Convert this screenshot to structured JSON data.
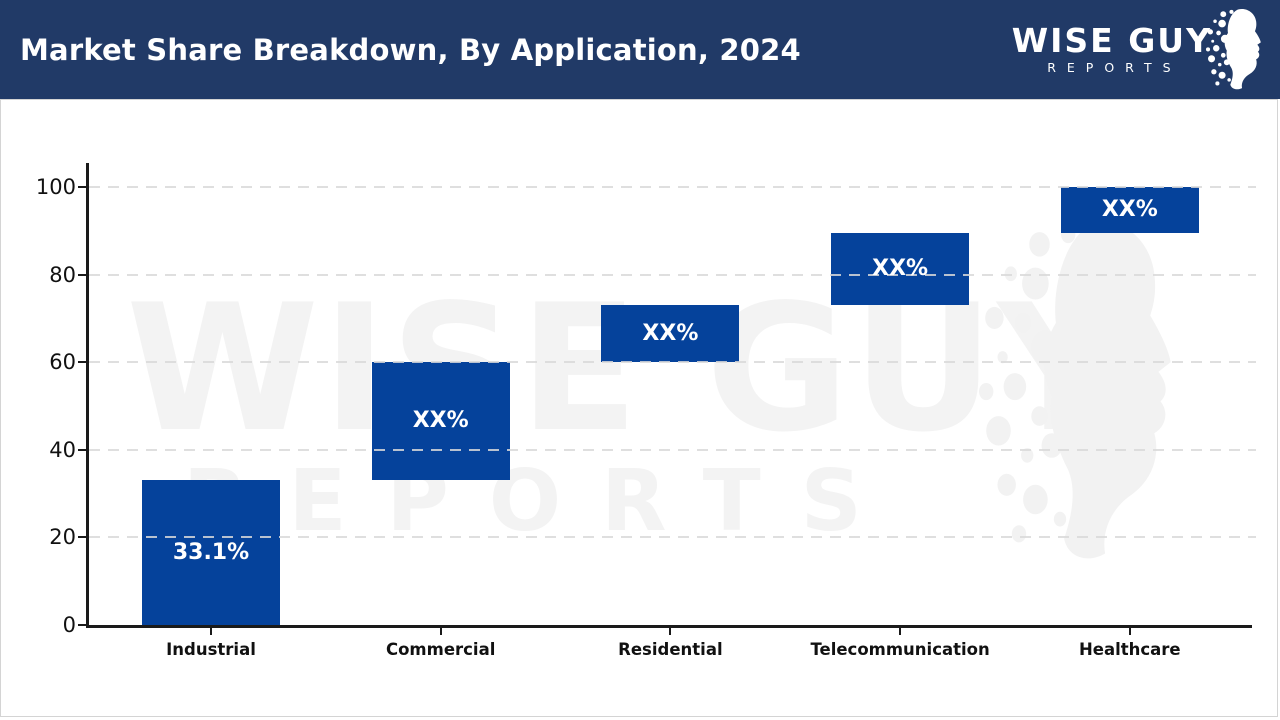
{
  "header": {
    "title": "Market Share Breakdown, By Application, 2024",
    "logo": {
      "wordmark": "WISE GUY",
      "tagline": "REPORTS"
    }
  },
  "watermark": {
    "wordmark": "WISE GUY",
    "tagline": "REPORTS"
  },
  "colors": {
    "header_bg": "#213a67",
    "title_text": "#ffffff",
    "bar": "#05429b",
    "bar_label": "#ffffff",
    "grid": "#d9d9d9",
    "axis": "#1a1a1a",
    "tick_text": "#111111",
    "watermark": "#f3f3f3"
  },
  "chart_data": {
    "type": "bar",
    "subtype": "waterfall",
    "title": "Market Share Breakdown, By Application, 2024",
    "categories": [
      "Industrial",
      "Commercial",
      "Residential",
      "Telecommunication",
      "Healthcare"
    ],
    "bars": [
      {
        "category": "Industrial",
        "label": "33.1%",
        "start": 0,
        "end": 33.1,
        "value": 33.1
      },
      {
        "category": "Commercial",
        "label": "XX%",
        "start": 33.1,
        "end": 60,
        "value": 26.9
      },
      {
        "category": "Residential",
        "label": "XX%",
        "start": 60,
        "end": 73,
        "value": 13.0
      },
      {
        "category": "Telecommunication",
        "label": "XX%",
        "start": 73,
        "end": 89.5,
        "value": 16.5
      },
      {
        "category": "Healthcare",
        "label": "XX%",
        "start": 89.5,
        "end": 100,
        "value": 10.5
      }
    ],
    "yticks": [
      0,
      20,
      40,
      60,
      80,
      100
    ],
    "ylim": [
      0,
      105
    ],
    "xlabel": "",
    "ylabel": "",
    "grid": "horizontal-dashed",
    "legend": "none"
  }
}
